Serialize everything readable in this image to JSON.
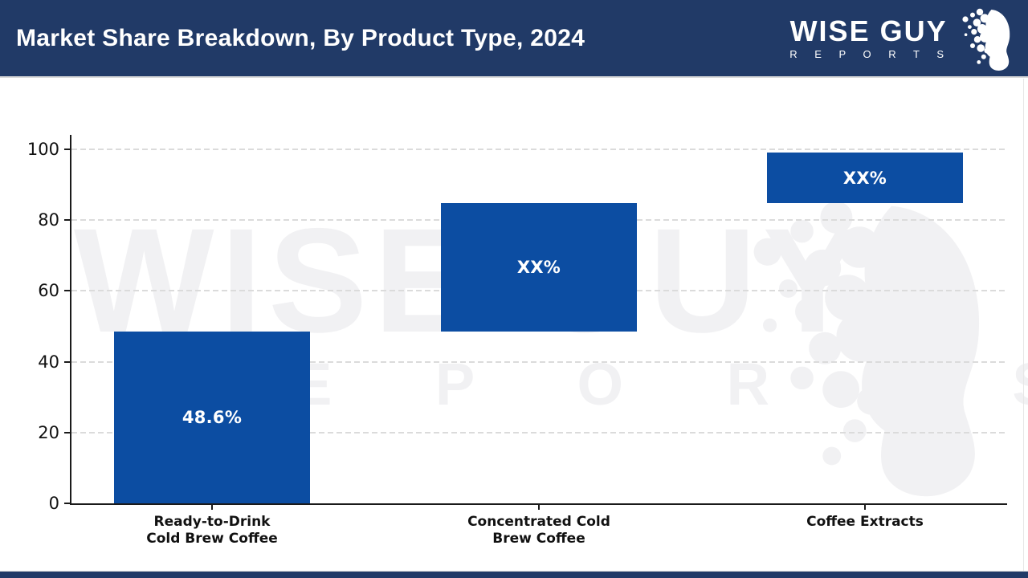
{
  "header": {
    "title": "Market Share Breakdown, By Product Type, 2024",
    "logo": {
      "wordmark": "WISE GUY",
      "subtext": "R E P O R T S",
      "face_icon": "dotted-face-profile"
    }
  },
  "watermark": {
    "wordmark": "WISE GUY",
    "subtext": "R E P O R T S",
    "face_icon": "dotted-face-profile"
  },
  "colors": {
    "header_navy": "#213A67",
    "footer_navy": "#213A67",
    "bar_blue": "#0C4DA2",
    "grid_gray": "#DBDBDB",
    "axis_black": "#1A1A1A",
    "bar_label_white": "#FFFFFF",
    "watermark_gray": "#F1F1F3"
  },
  "chart_data": {
    "type": "bar",
    "subtype": "waterfall-segments",
    "title": "Market Share Breakdown, By Product Type, 2024",
    "xlabel": "",
    "ylabel": "",
    "ylim": [
      0,
      100
    ],
    "yticks": [
      0,
      20,
      40,
      60,
      80,
      100
    ],
    "grid": "horizontal-dashed",
    "legend": "none",
    "categories": [
      {
        "lines": [
          "Ready-to-Drink",
          "Cold Brew Coffee"
        ]
      },
      {
        "lines": [
          "Concentrated Cold",
          "Brew Coffee"
        ]
      },
      {
        "lines": [
          "Coffee Extracts"
        ]
      }
    ],
    "segments": [
      {
        "category": "Ready-to-Drink Cold Brew Coffee",
        "start": 0,
        "end": 48.6,
        "label": "48.6%"
      },
      {
        "category": "Concentrated Cold Brew Coffee",
        "start": 48.6,
        "end": 84.8,
        "label": "XX%"
      },
      {
        "category": "Coffee Extracts",
        "start": 84.8,
        "end": 99.1,
        "label": "XX%"
      }
    ]
  }
}
